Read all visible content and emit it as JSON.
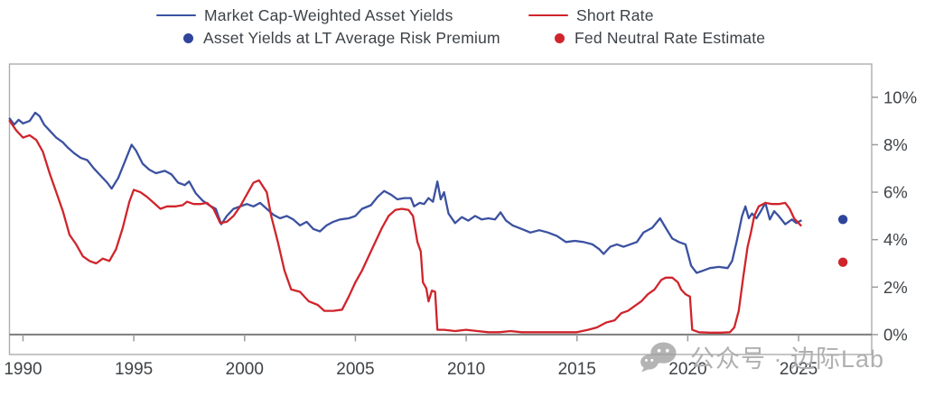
{
  "legend": {
    "items": [
      {
        "label": "Market Cap-Weighted Asset Yields",
        "marker": "line",
        "color": "#3B51A0"
      },
      {
        "label": "Short Rate",
        "marker": "line",
        "color": "#D0242C"
      },
      {
        "label": "Asset Yields at LT Average Risk Premium",
        "marker": "dot",
        "color": "#2E459B"
      },
      {
        "label": "Fed Neutral Rate Estimate",
        "marker": "dot",
        "color": "#D0242C"
      }
    ]
  },
  "watermark": {
    "text": "公众号 · 边际Lab",
    "icon": "wechat-icon"
  },
  "colors": {
    "frame": "#aeaeae",
    "zero_line": "#7c7c7c",
    "tick": "#9b9b9b",
    "text": "#3f4347",
    "blue_line": "#3B51A0",
    "red_line": "#D0242C",
    "blue_dot": "#2E459B",
    "red_dot": "#D0242C"
  },
  "chart_data": {
    "type": "line",
    "title": "",
    "xlabel": "",
    "ylabel": "",
    "grid": false,
    "legend_position": "top",
    "xlim": [
      1989.39,
      2028.3
    ],
    "ylim": [
      -0.84,
      11.4
    ],
    "x_ticks": [
      1990,
      1995,
      2000,
      2005,
      2010,
      2015,
      2020,
      2025
    ],
    "y_ticks": [
      0,
      2,
      4,
      6,
      8,
      10
    ],
    "y_tick_labels": [
      "0%",
      "2%",
      "4%",
      "6%",
      "8%",
      "10%"
    ],
    "zero_line": true,
    "series": [
      {
        "name": "Market Cap-Weighted Asset Yields",
        "color": "#3B51A0",
        "points": [
          [
            1989.4,
            9.1
          ],
          [
            1989.6,
            8.85
          ],
          [
            1989.8,
            9.05
          ],
          [
            1990.0,
            8.9
          ],
          [
            1990.3,
            9.0
          ],
          [
            1990.55,
            9.35
          ],
          [
            1990.75,
            9.2
          ],
          [
            1990.95,
            8.85
          ],
          [
            1991.2,
            8.6
          ],
          [
            1991.5,
            8.3
          ],
          [
            1991.8,
            8.1
          ],
          [
            1992.0,
            7.9
          ],
          [
            1992.3,
            7.65
          ],
          [
            1992.6,
            7.45
          ],
          [
            1992.9,
            7.35
          ],
          [
            1993.2,
            7.0
          ],
          [
            1993.5,
            6.7
          ],
          [
            1993.8,
            6.4
          ],
          [
            1994.0,
            6.15
          ],
          [
            1994.3,
            6.6
          ],
          [
            1994.6,
            7.3
          ],
          [
            1994.9,
            8.0
          ],
          [
            1995.1,
            7.75
          ],
          [
            1995.4,
            7.2
          ],
          [
            1995.7,
            6.95
          ],
          [
            1996.0,
            6.8
          ],
          [
            1996.4,
            6.9
          ],
          [
            1996.7,
            6.75
          ],
          [
            1997.0,
            6.4
          ],
          [
            1997.3,
            6.3
          ],
          [
            1997.5,
            6.45
          ],
          [
            1997.8,
            5.95
          ],
          [
            1998.1,
            5.65
          ],
          [
            1998.4,
            5.45
          ],
          [
            1998.7,
            5.3
          ],
          [
            1998.95,
            4.65
          ],
          [
            1999.2,
            5.0
          ],
          [
            1999.5,
            5.3
          ],
          [
            1999.8,
            5.4
          ],
          [
            2000.1,
            5.5
          ],
          [
            2000.4,
            5.4
          ],
          [
            2000.7,
            5.55
          ],
          [
            2001.0,
            5.3
          ],
          [
            2001.3,
            5.05
          ],
          [
            2001.6,
            4.9
          ],
          [
            2001.9,
            5.0
          ],
          [
            2002.2,
            4.85
          ],
          [
            2002.5,
            4.6
          ],
          [
            2002.8,
            4.75
          ],
          [
            2003.1,
            4.45
          ],
          [
            2003.4,
            4.35
          ],
          [
            2003.7,
            4.6
          ],
          [
            2004.0,
            4.75
          ],
          [
            2004.3,
            4.85
          ],
          [
            2004.7,
            4.9
          ],
          [
            2005.0,
            5.0
          ],
          [
            2005.3,
            5.3
          ],
          [
            2005.7,
            5.45
          ],
          [
            2006.0,
            5.8
          ],
          [
            2006.3,
            6.05
          ],
          [
            2006.6,
            5.9
          ],
          [
            2006.9,
            5.7
          ],
          [
            2007.2,
            5.75
          ],
          [
            2007.5,
            5.75
          ],
          [
            2007.65,
            5.4
          ],
          [
            2007.9,
            5.55
          ],
          [
            2008.1,
            5.5
          ],
          [
            2008.3,
            5.75
          ],
          [
            2008.5,
            5.6
          ],
          [
            2008.7,
            6.45
          ],
          [
            2008.85,
            5.7
          ],
          [
            2009.0,
            6.0
          ],
          [
            2009.2,
            5.1
          ],
          [
            2009.5,
            4.7
          ],
          [
            2009.8,
            4.95
          ],
          [
            2010.1,
            4.8
          ],
          [
            2010.4,
            5.0
          ],
          [
            2010.7,
            4.85
          ],
          [
            2011.0,
            4.9
          ],
          [
            2011.3,
            4.85
          ],
          [
            2011.55,
            5.15
          ],
          [
            2011.8,
            4.8
          ],
          [
            2012.1,
            4.6
          ],
          [
            2012.5,
            4.45
          ],
          [
            2012.9,
            4.3
          ],
          [
            2013.3,
            4.4
          ],
          [
            2013.7,
            4.3
          ],
          [
            2014.1,
            4.15
          ],
          [
            2014.5,
            3.9
          ],
          [
            2014.9,
            3.95
          ],
          [
            2015.3,
            3.9
          ],
          [
            2015.7,
            3.8
          ],
          [
            2016.0,
            3.6
          ],
          [
            2016.2,
            3.4
          ],
          [
            2016.5,
            3.7
          ],
          [
            2016.8,
            3.8
          ],
          [
            2017.1,
            3.7
          ],
          [
            2017.4,
            3.8
          ],
          [
            2017.7,
            3.9
          ],
          [
            2018.0,
            4.3
          ],
          [
            2018.4,
            4.5
          ],
          [
            2018.75,
            4.9
          ],
          [
            2019.0,
            4.5
          ],
          [
            2019.3,
            4.05
          ],
          [
            2019.6,
            3.9
          ],
          [
            2019.9,
            3.8
          ],
          [
            2020.15,
            2.9
          ],
          [
            2020.4,
            2.6
          ],
          [
            2020.7,
            2.7
          ],
          [
            2021.0,
            2.8
          ],
          [
            2021.4,
            2.85
          ],
          [
            2021.8,
            2.8
          ],
          [
            2022.0,
            3.1
          ],
          [
            2022.2,
            3.9
          ],
          [
            2022.45,
            5.0
          ],
          [
            2022.6,
            5.4
          ],
          [
            2022.75,
            4.9
          ],
          [
            2022.9,
            5.1
          ],
          [
            2023.1,
            4.9
          ],
          [
            2023.3,
            5.2
          ],
          [
            2023.5,
            5.55
          ],
          [
            2023.7,
            4.85
          ],
          [
            2023.9,
            5.2
          ],
          [
            2024.1,
            5.0
          ],
          [
            2024.4,
            4.65
          ],
          [
            2024.7,
            4.85
          ],
          [
            2024.9,
            4.7
          ],
          [
            2025.1,
            4.8
          ]
        ]
      },
      {
        "name": "Short Rate",
        "color": "#D0242C",
        "points": [
          [
            1989.4,
            9.0
          ],
          [
            1989.7,
            8.6
          ],
          [
            1990.0,
            8.3
          ],
          [
            1990.3,
            8.4
          ],
          [
            1990.6,
            8.2
          ],
          [
            1990.9,
            7.7
          ],
          [
            1991.2,
            6.8
          ],
          [
            1991.5,
            6.0
          ],
          [
            1991.8,
            5.2
          ],
          [
            1992.1,
            4.2
          ],
          [
            1992.4,
            3.8
          ],
          [
            1992.7,
            3.3
          ],
          [
            1993.0,
            3.1
          ],
          [
            1993.3,
            3.0
          ],
          [
            1993.6,
            3.2
          ],
          [
            1993.9,
            3.1
          ],
          [
            1994.2,
            3.6
          ],
          [
            1994.5,
            4.5
          ],
          [
            1994.8,
            5.6
          ],
          [
            1995.0,
            6.1
          ],
          [
            1995.3,
            6.0
          ],
          [
            1995.6,
            5.8
          ],
          [
            1995.9,
            5.55
          ],
          [
            1996.2,
            5.3
          ],
          [
            1996.5,
            5.4
          ],
          [
            1996.9,
            5.4
          ],
          [
            1997.2,
            5.45
          ],
          [
            1997.4,
            5.6
          ],
          [
            1997.7,
            5.5
          ],
          [
            1998.0,
            5.5
          ],
          [
            1998.3,
            5.55
          ],
          [
            1998.6,
            5.3
          ],
          [
            1998.9,
            4.7
          ],
          [
            1999.2,
            4.75
          ],
          [
            1999.5,
            5.0
          ],
          [
            1999.8,
            5.4
          ],
          [
            2000.1,
            5.9
          ],
          [
            2000.4,
            6.4
          ],
          [
            2000.65,
            6.5
          ],
          [
            2001.0,
            6.0
          ],
          [
            2001.2,
            5.0
          ],
          [
            2001.5,
            3.9
          ],
          [
            2001.8,
            2.7
          ],
          [
            2002.1,
            1.9
          ],
          [
            2002.5,
            1.8
          ],
          [
            2002.9,
            1.4
          ],
          [
            2003.3,
            1.25
          ],
          [
            2003.6,
            1.0
          ],
          [
            2004.0,
            1.0
          ],
          [
            2004.4,
            1.05
          ],
          [
            2004.7,
            1.6
          ],
          [
            2005.0,
            2.2
          ],
          [
            2005.3,
            2.7
          ],
          [
            2005.6,
            3.3
          ],
          [
            2005.9,
            3.9
          ],
          [
            2006.2,
            4.5
          ],
          [
            2006.5,
            5.0
          ],
          [
            2006.8,
            5.25
          ],
          [
            2007.1,
            5.3
          ],
          [
            2007.4,
            5.25
          ],
          [
            2007.6,
            5.0
          ],
          [
            2007.8,
            3.9
          ],
          [
            2007.95,
            3.5
          ],
          [
            2008.05,
            2.2
          ],
          [
            2008.2,
            1.95
          ],
          [
            2008.3,
            1.4
          ],
          [
            2008.45,
            1.85
          ],
          [
            2008.6,
            1.8
          ],
          [
            2008.7,
            0.2
          ],
          [
            2009.0,
            0.2
          ],
          [
            2009.5,
            0.15
          ],
          [
            2010.0,
            0.2
          ],
          [
            2010.5,
            0.15
          ],
          [
            2011.0,
            0.1
          ],
          [
            2011.5,
            0.1
          ],
          [
            2012.0,
            0.15
          ],
          [
            2012.5,
            0.1
          ],
          [
            2013.0,
            0.1
          ],
          [
            2013.5,
            0.1
          ],
          [
            2014.0,
            0.1
          ],
          [
            2014.5,
            0.1
          ],
          [
            2015.0,
            0.1
          ],
          [
            2015.5,
            0.2
          ],
          [
            2015.9,
            0.3
          ],
          [
            2016.3,
            0.5
          ],
          [
            2016.7,
            0.6
          ],
          [
            2017.0,
            0.9
          ],
          [
            2017.3,
            1.0
          ],
          [
            2017.6,
            1.2
          ],
          [
            2017.9,
            1.4
          ],
          [
            2018.2,
            1.7
          ],
          [
            2018.5,
            1.9
          ],
          [
            2018.8,
            2.3
          ],
          [
            2019.0,
            2.4
          ],
          [
            2019.3,
            2.4
          ],
          [
            2019.55,
            2.2
          ],
          [
            2019.7,
            1.9
          ],
          [
            2019.9,
            1.7
          ],
          [
            2020.1,
            1.6
          ],
          [
            2020.2,
            0.2
          ],
          [
            2020.5,
            0.1
          ],
          [
            2021.0,
            0.08
          ],
          [
            2021.5,
            0.08
          ],
          [
            2021.9,
            0.1
          ],
          [
            2022.1,
            0.3
          ],
          [
            2022.3,
            1.0
          ],
          [
            2022.5,
            2.4
          ],
          [
            2022.7,
            3.7
          ],
          [
            2022.85,
            4.3
          ],
          [
            2023.0,
            5.0
          ],
          [
            2023.2,
            5.4
          ],
          [
            2023.5,
            5.55
          ],
          [
            2023.8,
            5.5
          ],
          [
            2024.1,
            5.5
          ],
          [
            2024.4,
            5.55
          ],
          [
            2024.6,
            5.3
          ],
          [
            2024.8,
            4.9
          ],
          [
            2025.0,
            4.7
          ],
          [
            2025.1,
            4.6
          ]
        ]
      }
    ],
    "markers": [
      {
        "name": "Asset Yields at LT Average Risk Premium",
        "color": "#2E459B",
        "x": 2027.0,
        "y": 4.85
      },
      {
        "name": "Fed Neutral Rate Estimate",
        "color": "#D0242C",
        "x": 2027.0,
        "y": 3.05
      }
    ]
  }
}
